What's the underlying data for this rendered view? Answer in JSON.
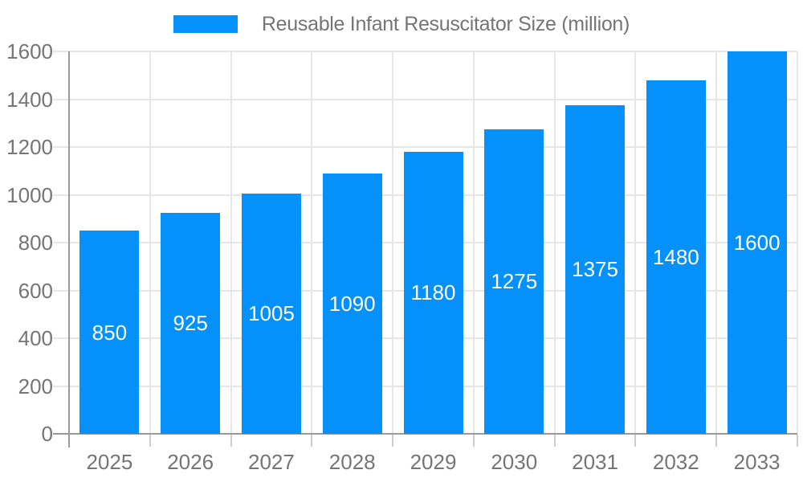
{
  "chart_data": {
    "type": "bar",
    "title": "Reusable Infant Resuscitator Size (million)",
    "categories": [
      "2025",
      "2026",
      "2027",
      "2028",
      "2029",
      "2030",
      "2031",
      "2032",
      "2033"
    ],
    "values": [
      850,
      925,
      1005,
      1090,
      1180,
      1275,
      1375,
      1480,
      1600
    ],
    "xlabel": "",
    "ylabel": "",
    "ylim": [
      0,
      1600
    ],
    "yticks": [
      0,
      200,
      400,
      600,
      800,
      1000,
      1200,
      1400,
      1600
    ],
    "grid": true,
    "legend_position": "top",
    "bar_labels_visible": true,
    "colors": {
      "bar": "#0690fa",
      "bar_label": "#ffffff",
      "axis_text": "#757575",
      "axis_line": "#999999",
      "gridline": "#e6e6e6",
      "tick": "#cccccc",
      "background": "#ffffff"
    }
  }
}
